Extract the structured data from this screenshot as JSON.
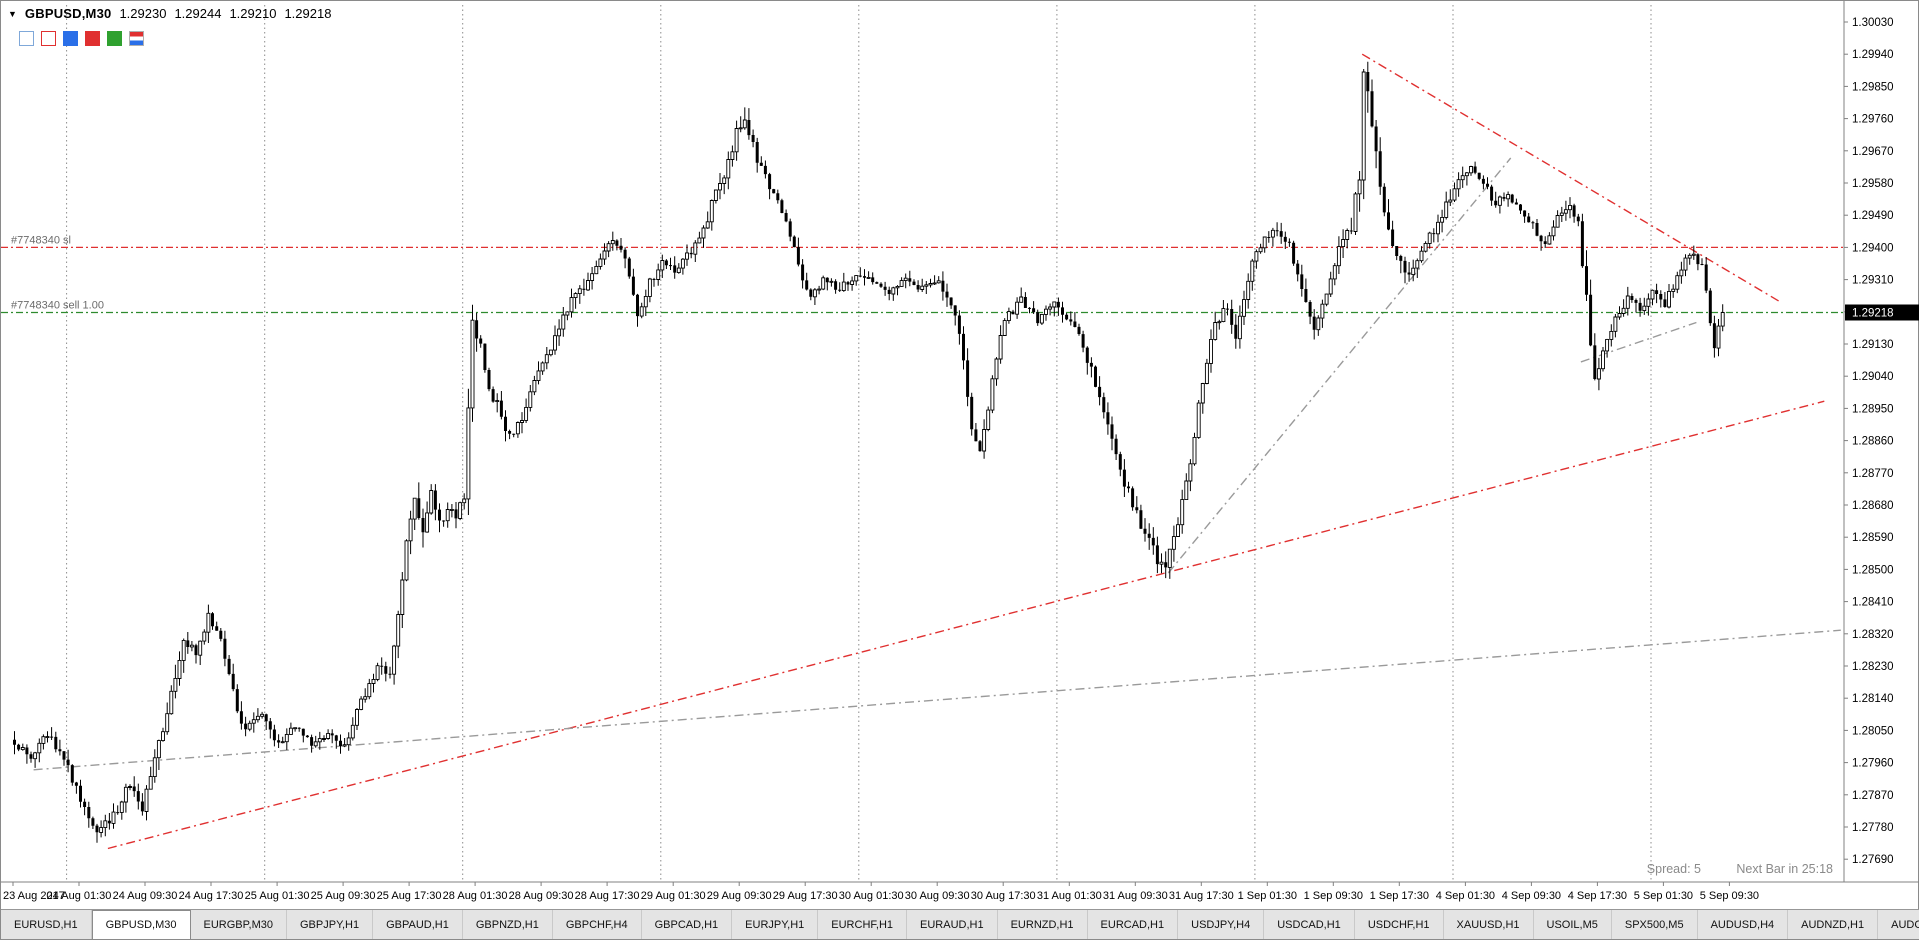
{
  "header": {
    "window_menu_icon": "▼",
    "symbol_period": "GBPUSD,M30",
    "open": "1.29230",
    "high": "1.29244",
    "low": "1.29210",
    "close": "1.29218"
  },
  "toolbar_swatches": [
    {
      "name": "swatch-white",
      "fill": "#ffffff",
      "border": "#7fa8d9"
    },
    {
      "name": "swatch-red-outline",
      "fill": "#ffffff",
      "border": "#e03030"
    },
    {
      "name": "swatch-blue",
      "fill": "#2a6fe8",
      "border": "#2a6fe8"
    },
    {
      "name": "swatch-red",
      "fill": "#e03030",
      "border": "#e03030"
    },
    {
      "name": "swatch-green",
      "fill": "#2fa12f",
      "border": "#2fa12f"
    },
    {
      "name": "swatch-striped",
      "fill": "stripes",
      "border": "#b0b0b0",
      "stripe_colors": [
        "#e03030",
        "#ffffff",
        "#2a6fe8"
      ]
    }
  ],
  "status_overlay": {
    "spread_text": "Spread: 5",
    "next_bar_text": "Next Bar in 25:18",
    "color": "#8a8a8a"
  },
  "order_lines": [
    {
      "id": "sl",
      "label": "#7748340 sl",
      "price": 1.294,
      "color": "#e03030",
      "label_color": "#6b6b6b"
    },
    {
      "id": "sell",
      "label": "#7748340 sell 1.00",
      "price": 1.29218,
      "color": "#2e8b2e",
      "label_color": "#6b6b6b"
    }
  ],
  "chart_data": {
    "type": "candlestick",
    "symbol": "GBPUSD",
    "timeframe": "M30",
    "bar_style": "black-on-white",
    "grid": "off",
    "current_price": "1.29218",
    "bars_total": 415,
    "y_axis": {
      "labels": [
        "1.30030",
        "1.29940",
        "1.29850",
        "1.29760",
        "1.29670",
        "1.29580",
        "1.29490",
        "1.29400",
        "1.29310",
        "1.29220",
        "1.29130",
        "1.29040",
        "1.28950",
        "1.28860",
        "1.28770",
        "1.28680",
        "1.28590",
        "1.28500",
        "1.28410",
        "1.28320",
        "1.28230",
        "1.28140",
        "1.28050",
        "1.27960",
        "1.27870",
        "1.27780",
        "1.27690"
      ]
    },
    "x_axis": {
      "bars_per_label": 16,
      "labels": [
        "23 Aug 2017",
        "24 Aug 01:30",
        "24 Aug 09:30",
        "24 Aug 17:30",
        "25 Aug 01:30",
        "25 Aug 09:30",
        "25 Aug 17:30",
        "28 Aug 01:30",
        "28 Aug 09:30",
        "28 Aug 17:30",
        "29 Aug 01:30",
        "29 Aug 09:30",
        "29 Aug 17:30",
        "30 Aug 01:30",
        "30 Aug 09:30",
        "30 Aug 17:30",
        "31 Aug 01:30",
        "31 Aug 09:30",
        "31 Aug 17:30",
        "1 Sep 01:30",
        "1 Sep 09:30",
        "1 Sep 17:30",
        "4 Sep 01:30",
        "4 Sep 09:30",
        "4 Sep 17:30",
        "5 Sep 01:30",
        "5 Sep 09:30"
      ],
      "day_separator_bars": [
        13,
        61,
        109,
        157,
        205,
        253,
        301,
        349,
        397
      ]
    },
    "price_path": [
      [
        0,
        1.2802,
        6
      ],
      [
        4,
        1.2797,
        6
      ],
      [
        8,
        1.2804,
        6
      ],
      [
        12,
        1.2797,
        6
      ],
      [
        16,
        1.2786,
        7
      ],
      [
        20,
        1.2776,
        7
      ],
      [
        24,
        1.2781,
        6
      ],
      [
        28,
        1.279,
        7
      ],
      [
        31,
        1.2783,
        6
      ],
      [
        34,
        1.2796,
        8
      ],
      [
        38,
        1.2815,
        9
      ],
      [
        41,
        1.283,
        9
      ],
      [
        44,
        1.2826,
        7
      ],
      [
        47,
        1.2837,
        7
      ],
      [
        50,
        1.283,
        7
      ],
      [
        53,
        1.2815,
        8
      ],
      [
        56,
        1.2805,
        7
      ],
      [
        60,
        1.281,
        6
      ],
      [
        64,
        1.2801,
        6
      ],
      [
        68,
        1.2806,
        5
      ],
      [
        72,
        1.2801,
        5
      ],
      [
        76,
        1.2804,
        5
      ],
      [
        80,
        1.28,
        5
      ],
      [
        84,
        1.2813,
        6
      ],
      [
        88,
        1.2822,
        7
      ],
      [
        91,
        1.2821,
        7
      ],
      [
        93,
        1.2836,
        10
      ],
      [
        95,
        1.2858,
        12
      ],
      [
        97,
        1.2868,
        11
      ],
      [
        99,
        1.286,
        10
      ],
      [
        101,
        1.2872,
        10
      ],
      [
        103,
        1.2862,
        9
      ],
      [
        105,
        1.2868,
        8
      ],
      [
        107,
        1.2865,
        7
      ],
      [
        109,
        1.287,
        7
      ],
      [
        110,
        1.2895,
        14
      ],
      [
        111,
        1.292,
        10
      ],
      [
        113,
        1.2912,
        8
      ],
      [
        115,
        1.29,
        7
      ],
      [
        117,
        1.2896,
        7
      ],
      [
        119,
        1.289,
        7
      ],
      [
        121,
        1.2888,
        7
      ],
      [
        124,
        1.2895,
        7
      ],
      [
        127,
        1.2905,
        7
      ],
      [
        130,
        1.2912,
        7
      ],
      [
        133,
        1.292,
        7
      ],
      [
        136,
        1.2928,
        7
      ],
      [
        139,
        1.293,
        6
      ],
      [
        142,
        1.2937,
        6
      ],
      [
        145,
        1.2942,
        6
      ],
      [
        148,
        1.2938,
        6
      ],
      [
        151,
        1.2922,
        7
      ],
      [
        154,
        1.293,
        6
      ],
      [
        157,
        1.2936,
        6
      ],
      [
        160,
        1.2934,
        6
      ],
      [
        163,
        1.2938,
        6
      ],
      [
        166,
        1.2942,
        7
      ],
      [
        169,
        1.2952,
        8
      ],
      [
        172,
        1.296,
        8
      ],
      [
        175,
        1.2972,
        8
      ],
      [
        177,
        1.2975,
        8
      ],
      [
        179,
        1.2968,
        8
      ],
      [
        181,
        1.2962,
        8
      ],
      [
        184,
        1.2955,
        7
      ],
      [
        187,
        1.2948,
        7
      ],
      [
        190,
        1.2935,
        7
      ],
      [
        193,
        1.2926,
        6
      ],
      [
        196,
        1.2931,
        6
      ],
      [
        200,
        1.2928,
        6
      ],
      [
        204,
        1.2933,
        6
      ],
      [
        208,
        1.293,
        6
      ],
      [
        212,
        1.2928,
        6
      ],
      [
        216,
        1.2932,
        6
      ],
      [
        220,
        1.2928,
        6
      ],
      [
        224,
        1.293,
        6
      ],
      [
        228,
        1.2922,
        7
      ],
      [
        230,
        1.2908,
        9
      ],
      [
        232,
        1.289,
        10
      ],
      [
        234,
        1.2884,
        9
      ],
      [
        236,
        1.2896,
        8
      ],
      [
        238,
        1.291,
        7
      ],
      [
        240,
        1.292,
        6
      ],
      [
        244,
        1.2925,
        6
      ],
      [
        248,
        1.292,
        6
      ],
      [
        252,
        1.2924,
        6
      ],
      [
        256,
        1.292,
        6
      ],
      [
        259,
        1.2912,
        7
      ],
      [
        262,
        1.2902,
        8
      ],
      [
        265,
        1.289,
        8
      ],
      [
        268,
        1.2878,
        8
      ],
      [
        271,
        1.2868,
        8
      ],
      [
        274,
        1.286,
        8
      ],
      [
        277,
        1.2853,
        8
      ],
      [
        279,
        1.2851,
        8
      ],
      [
        281,
        1.2858,
        8
      ],
      [
        283,
        1.2868,
        8
      ],
      [
        285,
        1.288,
        9
      ],
      [
        287,
        1.2895,
        9
      ],
      [
        289,
        1.2908,
        8
      ],
      [
        291,
        1.2918,
        7
      ],
      [
        294,
        1.2924,
        7
      ],
      [
        296,
        1.2914,
        7
      ],
      [
        298,
        1.2926,
        7
      ],
      [
        300,
        1.2936,
        7
      ],
      [
        303,
        1.2942,
        6
      ],
      [
        306,
        1.2945,
        6
      ],
      [
        309,
        1.2941,
        6
      ],
      [
        312,
        1.2928,
        7
      ],
      [
        315,
        1.2916,
        7
      ],
      [
        318,
        1.2928,
        7
      ],
      [
        321,
        1.294,
        7
      ],
      [
        324,
        1.2946,
        8
      ],
      [
        326,
        1.296,
        13
      ],
      [
        327,
        1.2987,
        15
      ],
      [
        329,
        1.2975,
        12
      ],
      [
        331,
        1.2958,
        10
      ],
      [
        333,
        1.2945,
        9
      ],
      [
        335,
        1.2938,
        8
      ],
      [
        338,
        1.2932,
        7
      ],
      [
        341,
        1.2938,
        7
      ],
      [
        344,
        1.2945,
        7
      ],
      [
        347,
        1.2952,
        7
      ],
      [
        350,
        1.2958,
        7
      ],
      [
        353,
        1.2962,
        6
      ],
      [
        356,
        1.2958,
        6
      ],
      [
        359,
        1.2952,
        6
      ],
      [
        362,
        1.2955,
        6
      ],
      [
        365,
        1.295,
        6
      ],
      [
        368,
        1.2946,
        6
      ],
      [
        371,
        1.294,
        6
      ],
      [
        374,
        1.2948,
        6
      ],
      [
        377,
        1.2952,
        6
      ],
      [
        379,
        1.2946,
        7
      ],
      [
        381,
        1.2925,
        10
      ],
      [
        383,
        1.2903,
        10
      ],
      [
        385,
        1.2912,
        7
      ],
      [
        388,
        1.292,
        6
      ],
      [
        391,
        1.2926,
        6
      ],
      [
        394,
        1.2922,
        6
      ],
      [
        397,
        1.2928,
        6
      ],
      [
        400,
        1.2924,
        6
      ],
      [
        403,
        1.2932,
        6
      ],
      [
        406,
        1.2938,
        6
      ],
      [
        409,
        1.2935,
        6
      ],
      [
        411,
        1.292,
        7
      ],
      [
        412,
        1.2912,
        7
      ],
      [
        414,
        1.29218,
        6
      ]
    ],
    "trendlines": [
      {
        "name": "descending-resistance",
        "color": "#e03030",
        "points": [
          [
            327,
            1.2994
          ],
          [
            428,
            1.2925
          ]
        ]
      },
      {
        "name": "ascending-support",
        "color": "#e03030",
        "points": [
          [
            23,
            1.2772
          ],
          [
            439,
            1.2897
          ]
        ]
      },
      {
        "name": "long-term-channel",
        "color": "#9a9a9a",
        "points": [
          [
            5,
            1.2794
          ],
          [
            443,
            1.2833
          ]
        ]
      },
      {
        "name": "steep-rally-line",
        "color": "#9a9a9a",
        "points": [
          [
            280,
            1.2849
          ],
          [
            363,
            1.2965
          ]
        ]
      },
      {
        "name": "minor-support",
        "color": "#9a9a9a",
        "points": [
          [
            380,
            1.2908
          ],
          [
            408,
            1.2919
          ]
        ]
      }
    ]
  },
  "tabbar": {
    "tabs": [
      {
        "label": "EURUSD,H1",
        "active": false
      },
      {
        "label": "GBPUSD,M30",
        "active": true
      },
      {
        "label": "EURGBP,M30",
        "active": false
      },
      {
        "label": "GBPJPY,H1",
        "active": false
      },
      {
        "label": "GBPAUD,H1",
        "active": false
      },
      {
        "label": "GBPNZD,H1",
        "active": false
      },
      {
        "label": "GBPCHF,H4",
        "active": false
      },
      {
        "label": "GBPCAD,H1",
        "active": false
      },
      {
        "label": "EURJPY,H1",
        "active": false
      },
      {
        "label": "EURCHF,H1",
        "active": false
      },
      {
        "label": "EURAUD,H1",
        "active": false
      },
      {
        "label": "EURNZD,H1",
        "active": false
      },
      {
        "label": "EURCAD,H1",
        "active": false
      },
      {
        "label": "USDJPY,H4",
        "active": false
      },
      {
        "label": "USDCAD,H1",
        "active": false
      },
      {
        "label": "USDCHF,H1",
        "active": false
      },
      {
        "label": "XAUUSD,H1",
        "active": false
      },
      {
        "label": "USOIL,M5",
        "active": false
      },
      {
        "label": "SPX500,M5",
        "active": false
      },
      {
        "label": "AUDUSD,H4",
        "active": false
      },
      {
        "label": "AUDNZD,H1",
        "active": false
      },
      {
        "label": "AUDCAD,Daily",
        "active": false
      }
    ]
  }
}
